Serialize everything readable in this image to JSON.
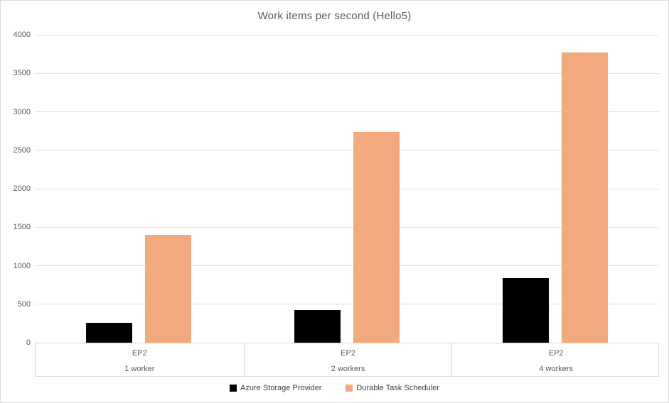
{
  "chart_data": {
    "type": "bar",
    "title": "Work items per second (Hello5)",
    "xlabel": "",
    "ylabel": "",
    "ylim": [
      0,
      4000
    ],
    "yticks": [
      0,
      500,
      1000,
      1500,
      2000,
      2500,
      3000,
      3500,
      4000
    ],
    "grid": "horizontal",
    "legend_position": "bottom",
    "categories": [
      {
        "line1": "EP2",
        "line2": "1 worker"
      },
      {
        "line1": "EP2",
        "line2": "2 workers"
      },
      {
        "line1": "EP2",
        "line2": "4 workers"
      }
    ],
    "series": [
      {
        "name": "Azure Storage Provider",
        "color": "#000000",
        "values": [
          260,
          420,
          840
        ]
      },
      {
        "name": "Durable Task Scheduler",
        "color": "#f2a97e",
        "values": [
          1400,
          2740,
          3770
        ]
      }
    ],
    "colors": {
      "background": "#ffffff",
      "chart_border": "#d9d9d9",
      "grid": "#e0e0e0",
      "axis_band_border": "#d9d9d9",
      "title_text": "#595959",
      "tick_text": "#595959",
      "legend_text": "#3f3f3f"
    }
  }
}
